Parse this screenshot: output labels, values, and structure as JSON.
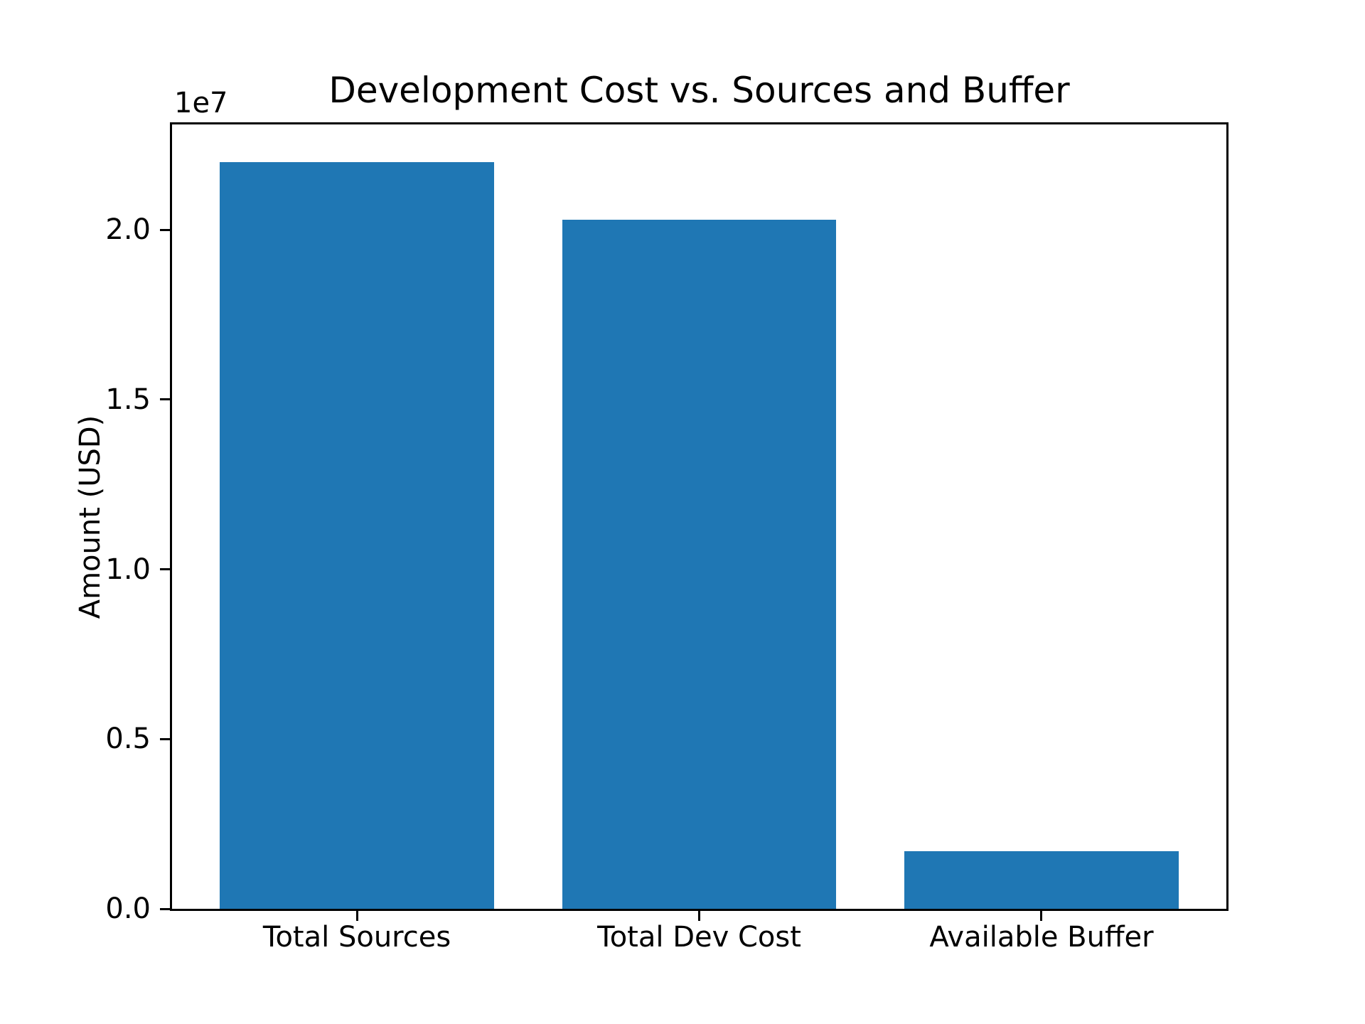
{
  "chart_data": {
    "type": "bar",
    "title": "Development Cost vs. Sources and Buffer",
    "categories": [
      "Total Sources",
      "Total Dev Cost",
      "Available Buffer"
    ],
    "values": [
      22000000,
      20300000,
      1700000
    ],
    "xlabel": "",
    "ylabel": "Amount (USD)",
    "offset_text": "1e7",
    "ylim": [
      0,
      23100000
    ],
    "xlim": [
      -0.54,
      2.54
    ],
    "bar_width": 0.8,
    "bar_color": "#1f77b4",
    "yticks": [
      0,
      5000000,
      10000000,
      15000000,
      20000000
    ],
    "ytick_labels": [
      "0.0",
      "0.5",
      "1.0",
      "1.5",
      "2.0"
    ],
    "grid": false,
    "legend": null
  }
}
